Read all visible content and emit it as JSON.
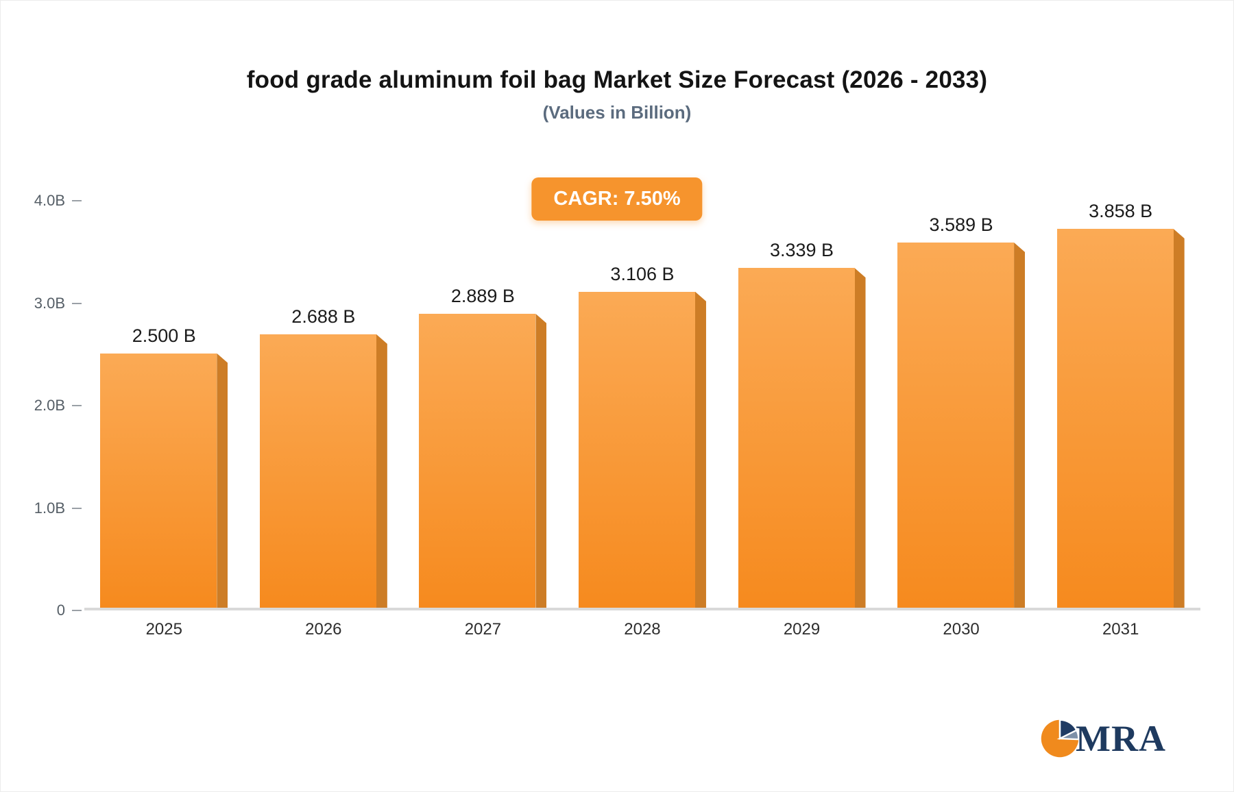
{
  "title": "food grade aluminum foil bag Market Size Forecast (2026 - 2033)",
  "subtitle": "(Values in Billion)",
  "badge": {
    "label": "CAGR: 7.50%",
    "bg": "#f6942d"
  },
  "logo": {
    "text": "MRA"
  },
  "chart_data": {
    "type": "bar",
    "title": "food grade aluminum foil bag Market Size Forecast (2026 - 2033)",
    "subtitle": "(Values in Billion)",
    "categories": [
      "2025",
      "2026",
      "2027",
      "2028",
      "2029",
      "2030",
      "2031"
    ],
    "values": [
      2.5,
      2.688,
      2.889,
      3.106,
      3.339,
      3.589,
      3.858
    ],
    "value_labels": [
      "2.500 B",
      "2.688 B",
      "2.889 B",
      "3.106 B",
      "3.339 B",
      "3.589 B",
      "3.858 B"
    ],
    "unit": "Billion",
    "cagr": "7.50%",
    "ylim": [
      0,
      4.0
    ],
    "yticks": [
      {
        "label": "0",
        "value": 0.0
      },
      {
        "label": "1.0B",
        "value": 1.0
      },
      {
        "label": "2.0B",
        "value": 2.0
      },
      {
        "label": "3.0B",
        "value": 3.0
      },
      {
        "label": "4.0B",
        "value": 4.0
      }
    ],
    "grid": false,
    "legend": "none",
    "colors": {
      "bar_top": "#fbaa55",
      "bar_bottom": "#f68a1e",
      "bar_side": "#cd7d26",
      "axis_line": "#d9d9d9",
      "tick_text": "#555e66",
      "badge_bg": "#f6942d"
    }
  }
}
